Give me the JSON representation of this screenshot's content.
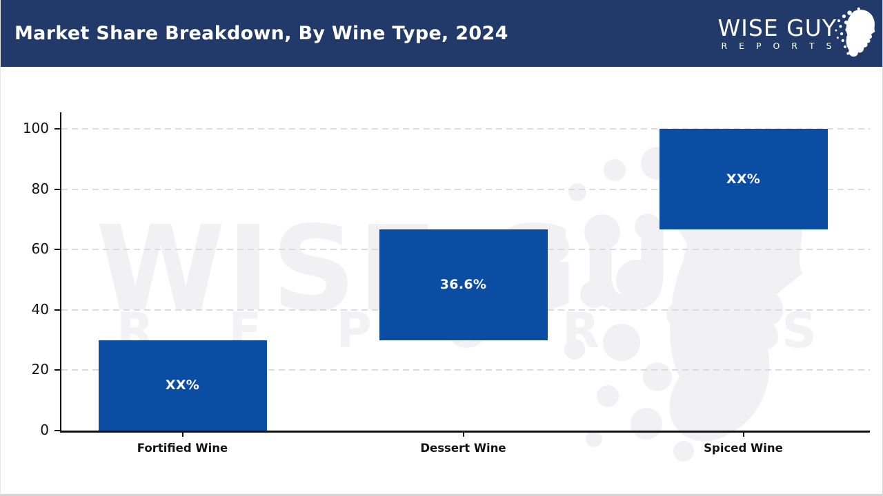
{
  "header": {
    "title": "Market Share Breakdown, By Wine Type, 2024",
    "bg_color": "#213a6a",
    "brand": {
      "name": "WISE GUY",
      "sub": "R E P O R T S"
    }
  },
  "watermark": {
    "line1": "WISE GUY",
    "line2": "R E P O R T S"
  },
  "chart_data": {
    "type": "bar",
    "subtype": "floating-segment-waterfall",
    "title": "Market Share Breakdown, By Wine Type, 2024",
    "categories": [
      "Fortified Wine",
      "Dessert Wine",
      "Spiced Wine"
    ],
    "values": [
      30,
      36.6,
      33.4
    ],
    "segment_start": [
      0,
      30,
      66.6
    ],
    "segment_end": [
      30,
      66.6,
      100
    ],
    "bar_labels": [
      "XX%",
      "36.6%",
      "XX%"
    ],
    "xlabel": "",
    "ylabel": "",
    "ylim": [
      0,
      100
    ],
    "yticks": [
      0,
      20,
      40,
      60,
      80,
      100
    ],
    "grid": "horizontal-dashed",
    "legend": "none",
    "bar_color": "#0b4da2",
    "bar_label_color": "#ffffff",
    "axis_color": "#111111",
    "gridline_color": "#dcdcdc"
  }
}
